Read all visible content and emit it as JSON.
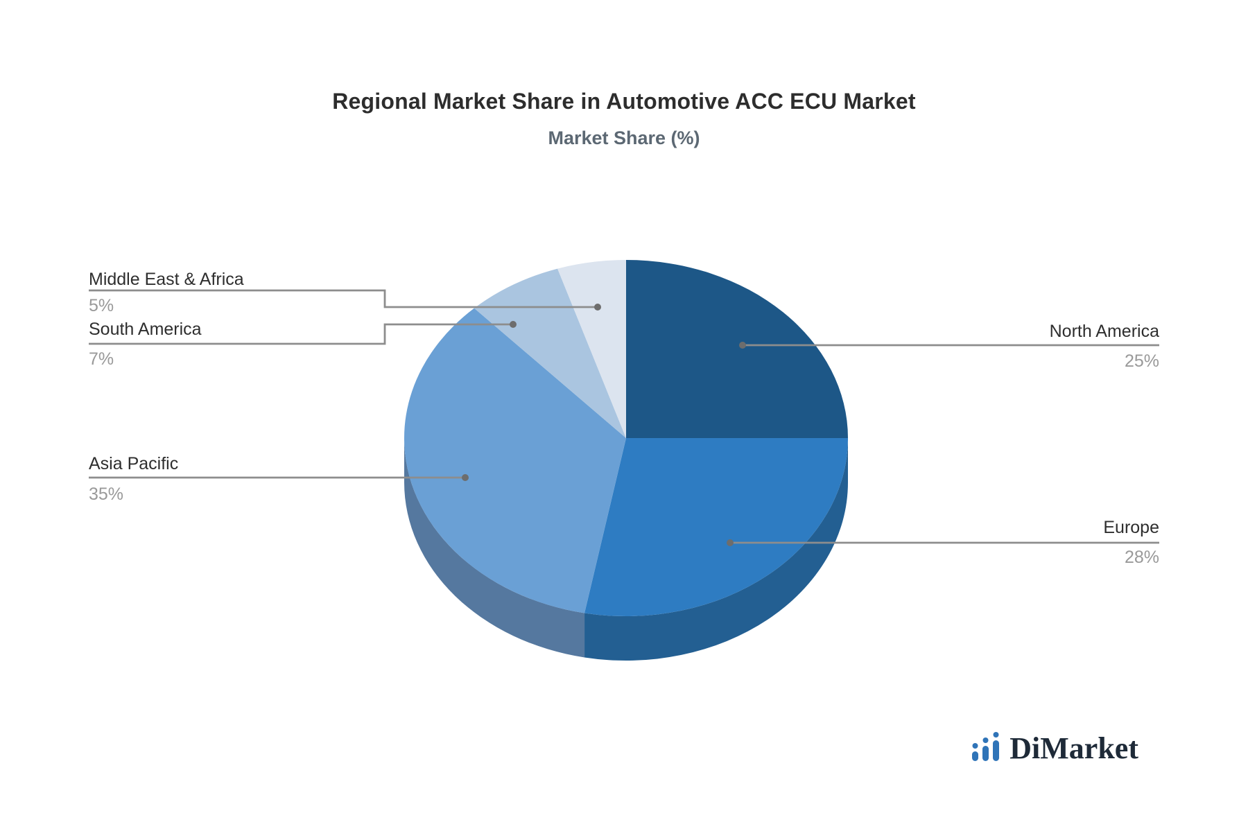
{
  "chart": {
    "title": "Regional Market Share in Automotive ACC ECU Market",
    "subtitle": "Market Share (%)"
  },
  "chart_data": {
    "type": "pie",
    "title": "Regional Market Share in Automotive ACC ECU Market",
    "subtitle": "Market Share (%)",
    "unit": "%",
    "start_angle_deg": 0,
    "direction": "clockwise",
    "effect": "3d-depth",
    "slices": [
      {
        "label": "North America",
        "value": 25,
        "display": "25%",
        "color": "#1d5787",
        "side": "right"
      },
      {
        "label": "Europe",
        "value": 28,
        "display": "28%",
        "color": "#2e7cc2",
        "wall_color": "#235f92",
        "side": "right"
      },
      {
        "label": "Asia Pacific",
        "value": 35,
        "display": "35%",
        "color": "#6aa0d5",
        "wall_color": "#55789f",
        "side": "left"
      },
      {
        "label": "South America",
        "value": 7,
        "display": "7%",
        "color": "#aac5e0",
        "side": "left"
      },
      {
        "label": "Middle East & Africa",
        "value": 5,
        "display": "5%",
        "color": "#dce4ef",
        "side": "left"
      }
    ]
  },
  "style": {
    "line_color": "#8d8d8d",
    "dot_color": "#6d6d6d",
    "title_color": "#2d2d2d",
    "subtitle_color": "#5c6873",
    "label_color": "#2e2e2e",
    "pct_color": "#999999"
  },
  "branding": {
    "logo_text": "DiMarket",
    "logo_text_color": "#1e2a38",
    "logo_icon": "bar-chart-dots-icon",
    "logo_icon_color": "#2f74b8"
  }
}
